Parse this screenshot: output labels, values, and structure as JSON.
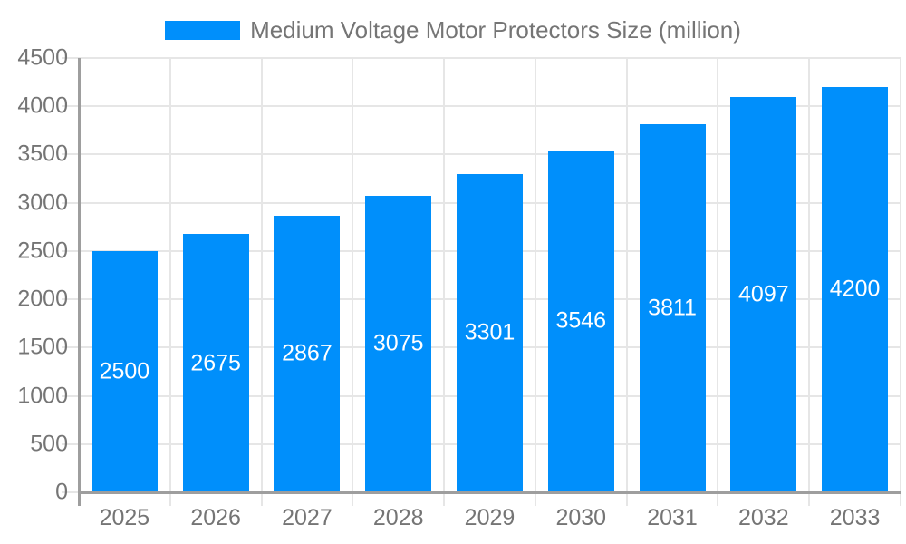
{
  "legend": {
    "position": "top",
    "label": "Medium Voltage Motor Protectors Size (million)"
  },
  "chart_data": {
    "type": "bar",
    "title": "Medium Voltage Motor Protectors Size (million)",
    "series": [
      {
        "name": "Medium Voltage Motor Protectors Size (million)",
        "values": [
          2500,
          2675,
          2867,
          3075,
          3301,
          3546,
          3811,
          4097,
          4200
        ]
      }
    ],
    "categories": [
      "2025",
      "2026",
      "2027",
      "2028",
      "2029",
      "2030",
      "2031",
      "2032",
      "2033"
    ],
    "data_labels": [
      "2500",
      "2675",
      "2867",
      "3075",
      "3301",
      "3546",
      "3811",
      "4097",
      "4200"
    ],
    "xlabel": "",
    "ylabel": "",
    "ylim": [
      0,
      4500
    ],
    "ytick_step": 500,
    "ytick_labels": [
      "0",
      "500",
      "1000",
      "1500",
      "2000",
      "2500",
      "3000",
      "3500",
      "4000",
      "4500"
    ],
    "grid": true,
    "legend_position": "top",
    "colors": {
      "bar": "#008FFB",
      "data_label": "#ffffff",
      "axis_text": "#757575",
      "grid_line": "#e6e6e6",
      "axis_line": "#9e9e9e",
      "background": "#ffffff"
    }
  }
}
